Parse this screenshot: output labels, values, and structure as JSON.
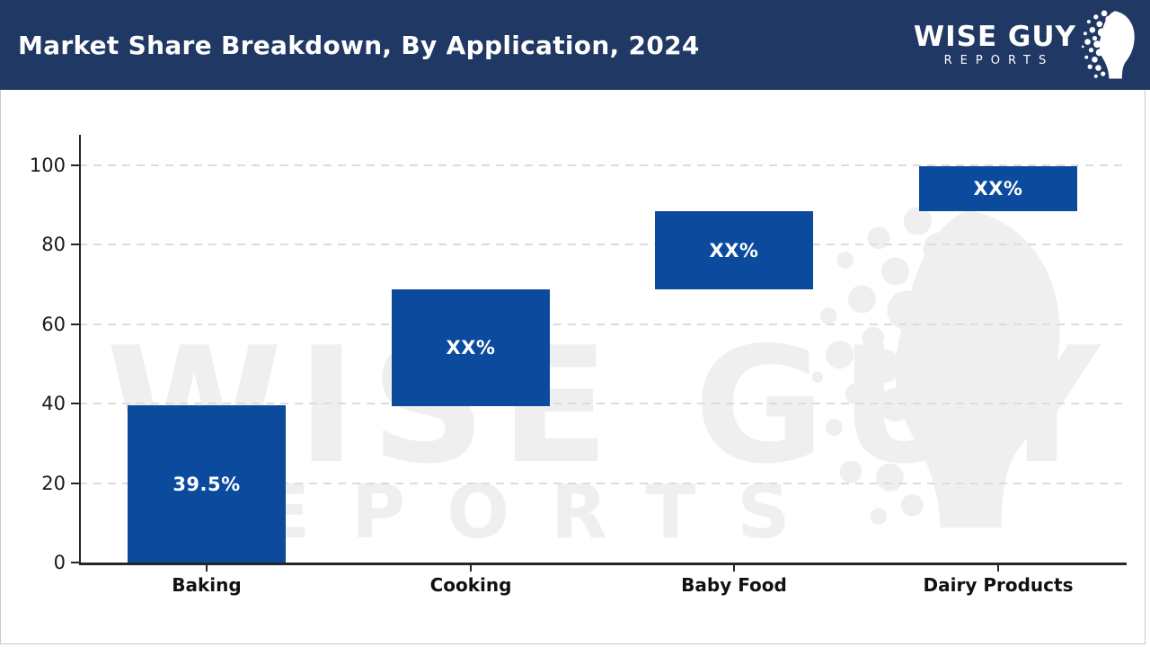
{
  "header": {
    "title": "Market Share Breakdown, By Application, 2024",
    "logo": {
      "name": "WISE GUY",
      "sub": "REPORTS"
    }
  },
  "watermark": {
    "name": "WISE GUY",
    "sub": "REPORTS"
  },
  "colors": {
    "header_bg": "#1f3864",
    "bar_blue": "#0c4a9e",
    "grid": "#dcdcdc",
    "axis": "#262626",
    "watermark": "#efefef",
    "bar_label": "#ffffff"
  },
  "chart_data": {
    "type": "bar",
    "subtype": "floating-waterfall",
    "title": "Market Share Breakdown, By Application, 2024",
    "categories": [
      "Baking",
      "Cooking",
      "Baby Food",
      "Dairy Products"
    ],
    "segments": [
      {
        "category": "Baking",
        "start": 0,
        "end": 39.5,
        "label": "39.5%"
      },
      {
        "category": "Cooking",
        "start": 39.5,
        "end": 68.8,
        "label": "XX%"
      },
      {
        "category": "Baby Food",
        "start": 68.8,
        "end": 88.4,
        "label": "XX%"
      },
      {
        "category": "Dairy Products",
        "start": 88.4,
        "end": 99.7,
        "label": "XX%"
      }
    ],
    "y_ticks": [
      0,
      20,
      40,
      60,
      80,
      100
    ],
    "ylim": [
      0,
      108
    ],
    "xlabel": "",
    "ylabel": "",
    "grid": "horizontal-dashed",
    "legend": "none"
  }
}
